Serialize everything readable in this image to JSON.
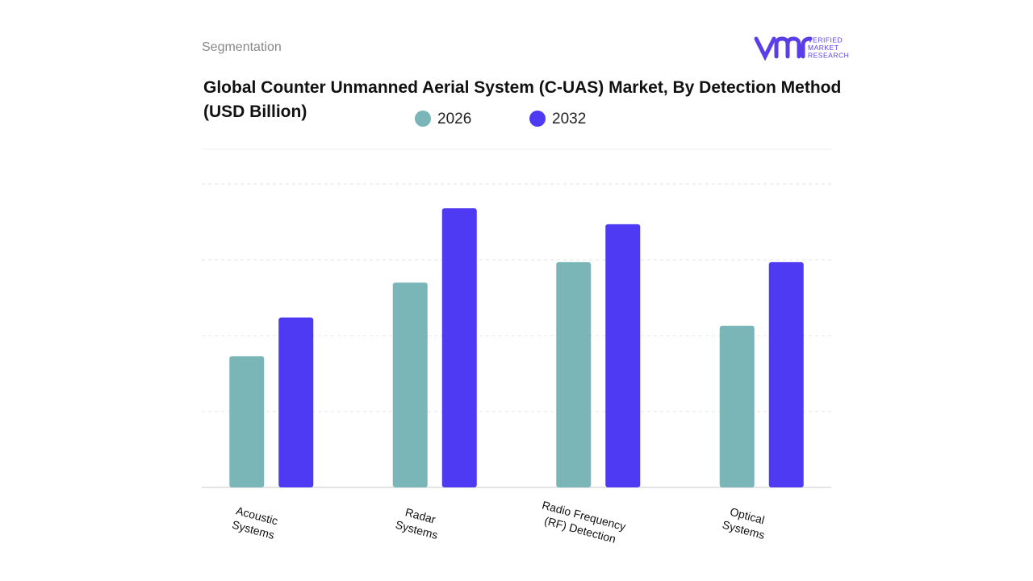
{
  "header": {
    "section": "Segmentation",
    "logo_lines": [
      "VERIFIED",
      "MARKET",
      "RESEARCH"
    ]
  },
  "chart_data": {
    "type": "bar",
    "title": "Global Counter Unmanned Aerial System (C-UAS) Market, By Detection Method (USD Billion)",
    "categories": [
      [
        "Acoustic",
        "Systems"
      ],
      [
        "Radar",
        "Systems"
      ],
      [
        "Radio Frequency",
        "(RF) Detection"
      ],
      [
        "Optical",
        "Systems"
      ]
    ],
    "series": [
      {
        "name": "2026",
        "color": "#7ab5b8",
        "values": [
          1.73,
          2.7,
          2.97,
          2.13
        ]
      },
      {
        "name": "2032",
        "color": "#4d3af2",
        "values": [
          2.24,
          3.68,
          3.47,
          2.97
        ]
      }
    ],
    "ylim": [
      0,
      4.5
    ],
    "yticks": [
      0,
      1,
      2,
      3,
      4
    ],
    "grid": true
  }
}
